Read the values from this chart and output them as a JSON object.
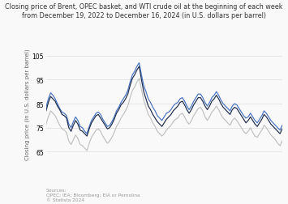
{
  "title_line1": "Closing price of Brent, OPEC basket, and WTI crude oil at the beginning of each week",
  "title_line2": "from December 19, 2022 to December 16, 2024 (in U.S. dollars per barrel)",
  "ylabel": "Closing price (in U.S. dollars per barrel)",
  "source_text": "Sources:\nOPEC; IEA; Bloomberg; EIA or Pemolina\n© Statista 2024",
  "ylim": [
    62,
    108
  ],
  "yticks": [
    65,
    75,
    85,
    95,
    105
  ],
  "color_brent": "#1c2b4a",
  "color_opec": "#4472c4",
  "color_wti": "#c0c0c0",
  "linewidth": 0.85,
  "brent": [
    82.0,
    85.5,
    88.0,
    87.0,
    86.0,
    84.0,
    82.5,
    80.5,
    80.0,
    79.0,
    75.0,
    73.5,
    76.0,
    78.0,
    76.5,
    74.0,
    73.5,
    72.5,
    71.5,
    74.5,
    77.0,
    78.5,
    80.0,
    80.5,
    79.0,
    77.5,
    76.0,
    74.5,
    75.0,
    76.5,
    78.5,
    81.0,
    82.5,
    84.5,
    85.5,
    87.0,
    89.0,
    92.5,
    95.5,
    97.0,
    99.0,
    100.5,
    95.0,
    90.0,
    87.0,
    84.0,
    82.5,
    80.5,
    79.0,
    77.5,
    76.5,
    75.5,
    77.0,
    78.5,
    79.5,
    80.5,
    82.0,
    83.0,
    84.0,
    85.5,
    86.0,
    84.5,
    82.5,
    81.0,
    82.5,
    84.5,
    86.0,
    87.5,
    87.5,
    86.0,
    84.0,
    82.5,
    84.0,
    86.0,
    87.0,
    88.5,
    87.0,
    85.0,
    83.5,
    82.5,
    81.5,
    80.5,
    82.5,
    83.5,
    83.0,
    81.5,
    80.0,
    78.5,
    77.0,
    78.0,
    79.5,
    78.0,
    76.5,
    75.5,
    77.0,
    78.5,
    80.5,
    79.5,
    78.0,
    76.5,
    75.5,
    74.5,
    73.5,
    72.5,
    74.5
  ],
  "opec": [
    83.5,
    87.0,
    89.5,
    88.5,
    87.0,
    85.0,
    83.0,
    81.5,
    81.0,
    80.0,
    76.5,
    75.0,
    77.5,
    79.5,
    78.0,
    75.5,
    75.0,
    73.5,
    72.5,
    75.5,
    78.0,
    79.5,
    81.0,
    81.5,
    80.5,
    78.5,
    77.0,
    75.5,
    76.0,
    77.5,
    79.5,
    82.0,
    83.5,
    85.5,
    87.0,
    88.5,
    90.5,
    94.0,
    97.0,
    98.5,
    100.5,
    102.0,
    97.0,
    92.5,
    90.0,
    87.0,
    85.5,
    83.5,
    82.0,
    80.0,
    79.0,
    78.0,
    79.5,
    81.0,
    81.5,
    82.5,
    84.0,
    85.0,
    85.5,
    87.0,
    87.5,
    86.0,
    84.0,
    82.5,
    84.0,
    86.0,
    87.5,
    89.0,
    89.0,
    87.5,
    85.5,
    84.0,
    85.5,
    87.5,
    88.5,
    90.0,
    88.5,
    86.5,
    85.0,
    84.0,
    83.0,
    82.0,
    84.0,
    85.0,
    84.5,
    83.0,
    81.5,
    80.0,
    79.0,
    79.5,
    81.0,
    79.5,
    78.0,
    77.0,
    78.5,
    80.0,
    82.0,
    81.0,
    79.5,
    78.0,
    77.0,
    76.0,
    75.0,
    74.0,
    76.0
  ],
  "wti": [
    76.5,
    79.5,
    82.0,
    81.0,
    80.0,
    78.0,
    76.0,
    74.5,
    74.0,
    73.0,
    69.5,
    68.0,
    70.0,
    72.0,
    70.5,
    68.0,
    67.5,
    66.5,
    65.5,
    68.5,
    71.0,
    72.5,
    74.0,
    74.5,
    73.5,
    71.5,
    70.0,
    68.5,
    69.5,
    71.0,
    73.0,
    75.5,
    77.0,
    79.0,
    80.5,
    82.0,
    84.0,
    87.5,
    90.5,
    92.0,
    94.0,
    95.5,
    91.0,
    86.5,
    83.5,
    80.5,
    79.0,
    77.0,
    75.5,
    73.5,
    72.5,
    71.5,
    72.5,
    74.0,
    75.0,
    76.0,
    77.5,
    78.5,
    79.0,
    80.5,
    81.0,
    79.5,
    77.5,
    76.5,
    78.0,
    80.0,
    81.5,
    83.0,
    83.5,
    82.0,
    79.5,
    78.0,
    79.5,
    81.5,
    82.5,
    84.0,
    82.5,
    80.5,
    79.0,
    78.0,
    77.0,
    76.0,
    78.0,
    79.0,
    78.0,
    76.5,
    75.0,
    73.5,
    72.5,
    73.5,
    75.0,
    73.0,
    71.5,
    71.0,
    72.5,
    74.0,
    76.0,
    75.0,
    73.5,
    72.0,
    71.0,
    70.0,
    68.5,
    67.5,
    69.5
  ],
  "bg_color": "#f9f9f9",
  "grid_color": "#dddddd",
  "title_fontsize": 5.8,
  "ylabel_fontsize": 5.0,
  "tick_fontsize": 5.5,
  "source_fontsize": 4.2
}
